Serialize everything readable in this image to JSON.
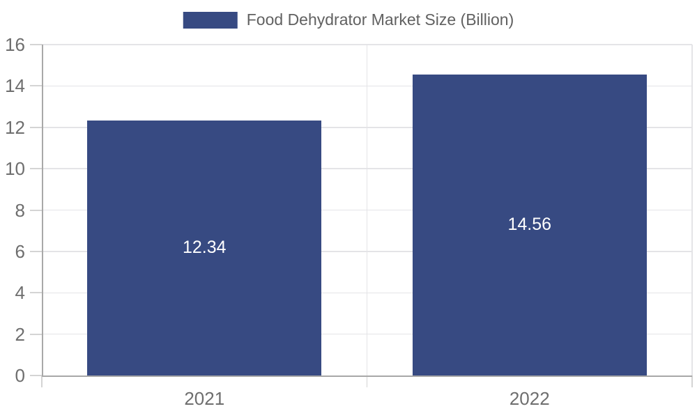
{
  "chart_data": {
    "type": "bar",
    "title": "",
    "legend_label": "Food Dehydrator Market Size (Billion)",
    "legend_position": "top-center",
    "categories": [
      "2021",
      "2022"
    ],
    "values": [
      12.34,
      14.56
    ],
    "value_labels": [
      "12.34",
      "14.56"
    ],
    "xlabel": "",
    "ylabel": "",
    "ylim": [
      0,
      16
    ],
    "yticks": [
      0,
      2,
      4,
      6,
      8,
      10,
      12,
      14,
      16
    ],
    "grid": true,
    "colors": {
      "bar": "#374a82",
      "value_label_text": "#ffffff",
      "axis_text": "#6e6e6e",
      "legend_text": "#616161",
      "gridline": "#e4e4e7",
      "axis_line": "#a8a8a8",
      "tick_mark": "#d4d4d4"
    }
  }
}
